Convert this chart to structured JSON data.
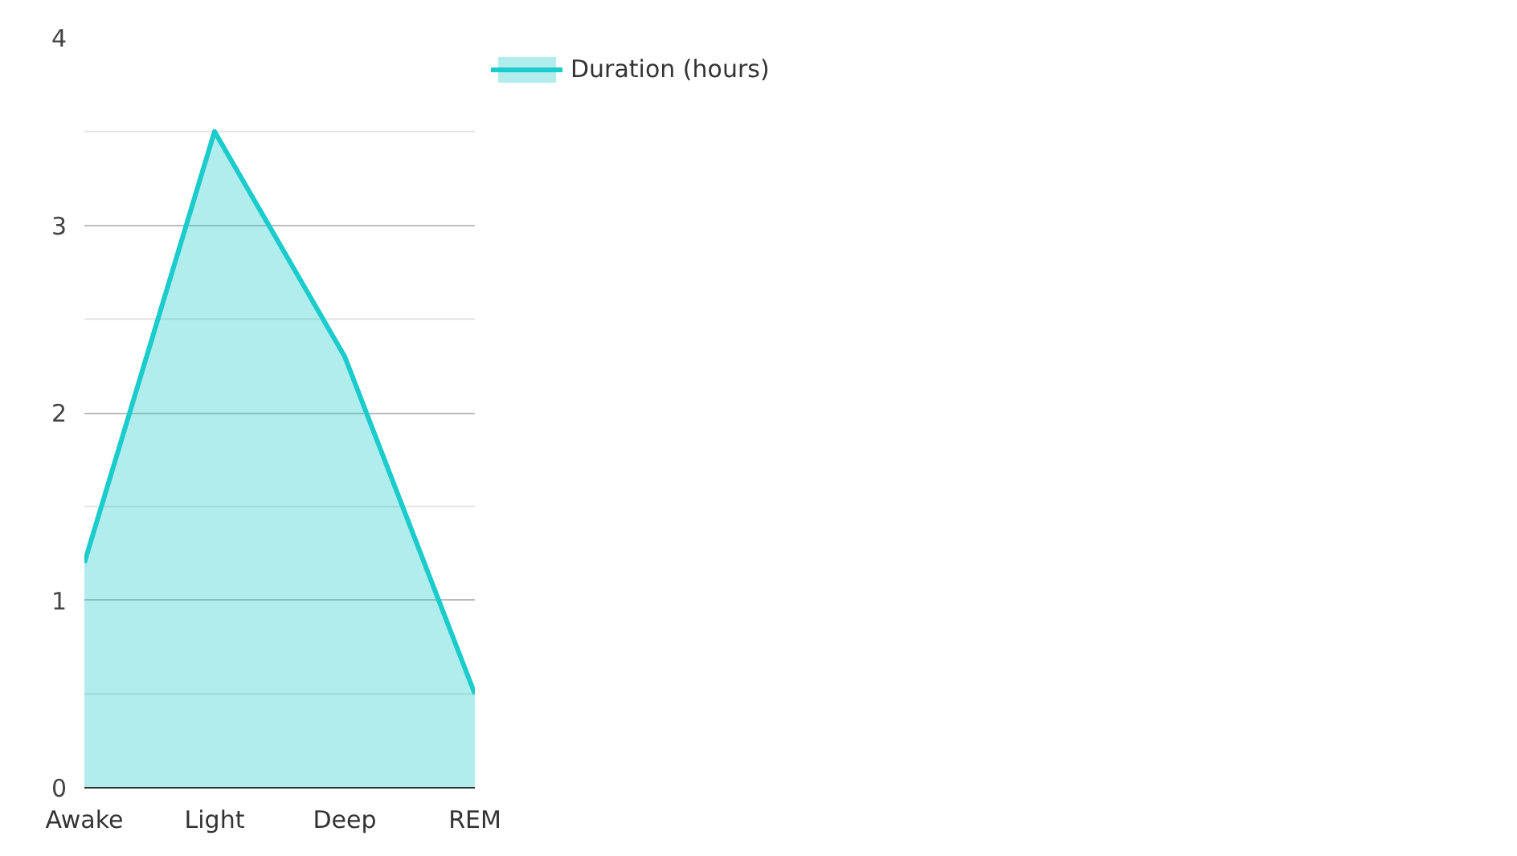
{
  "chart_data": {
    "type": "area",
    "categories": [
      "Awake",
      "Light",
      "Deep",
      "REM"
    ],
    "series": [
      {
        "name": "Duration (hours)",
        "color": "#1ccbcb",
        "values": [
          1.2,
          3.5,
          2.3,
          0.5
        ]
      }
    ],
    "ylim": [
      0,
      4
    ],
    "yticks": [
      0,
      {
        "value": 0.5,
        "label": null
      },
      1,
      {
        "value": 1.5,
        "label": null
      },
      2,
      {
        "value": 2.5,
        "label": null
      },
      3,
      {
        "value": 3.5,
        "label": null
      },
      4
    ],
    "grid": "y",
    "legend": "top right"
  }
}
